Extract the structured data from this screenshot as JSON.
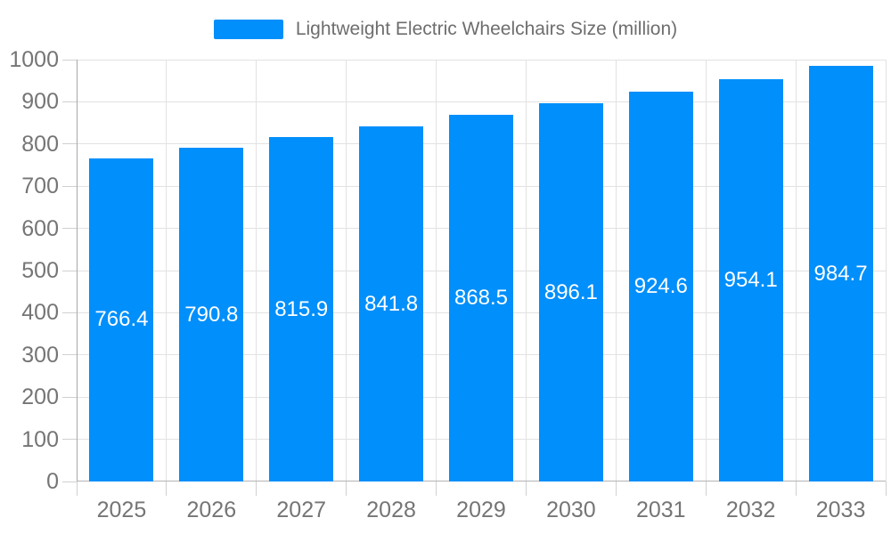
{
  "chart_data": {
    "type": "bar",
    "title": "Lightweight Electric Wheelchairs Size (million)",
    "categories": [
      "2025",
      "2026",
      "2027",
      "2028",
      "2029",
      "2030",
      "2031",
      "2032",
      "2033"
    ],
    "values": [
      766.4,
      790.8,
      815.9,
      841.8,
      868.5,
      896.1,
      924.6,
      954.1,
      984.7
    ],
    "value_labels": [
      "766.4",
      "790.8",
      "815.9",
      "841.8",
      "868.5",
      "896.1",
      "924.6",
      "954.1",
      "984.7"
    ],
    "xlabel": "",
    "ylabel": "",
    "ylim": [
      0,
      1000
    ],
    "yticks": [
      0,
      100,
      200,
      300,
      400,
      500,
      600,
      700,
      800,
      900,
      1000
    ],
    "grid": true,
    "legend_position": "top",
    "colors": {
      "bar": "#008FFB",
      "grid": "#e2e2e2",
      "tick": "#d0d0d0",
      "y_axis": "#a8a8a8",
      "x_baseline": "#b4b4b4",
      "axis_label": "#757575",
      "title": "#6e6e6e",
      "value_label": "#ffffff",
      "background": "#ffffff"
    }
  }
}
